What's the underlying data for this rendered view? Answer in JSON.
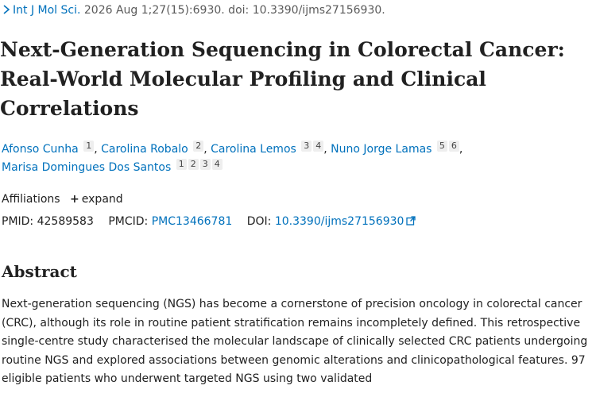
{
  "citation": {
    "journal": "Int J Mol Sci.",
    "details": "2026 Aug 1;27(15):6930. doi: 10.3390/ijms27156930."
  },
  "title": "Next-Generation Sequencing in Colorectal Cancer: Real-World Molecular Profiling and Clinical Correlations",
  "authors": [
    {
      "name": "Afonso Cunha",
      "affils": [
        "1"
      ]
    },
    {
      "name": "Carolina Robalo",
      "affils": [
        "2"
      ]
    },
    {
      "name": "Carolina Lemos",
      "affils": [
        "3",
        "4"
      ]
    },
    {
      "name": "Nuno Jorge Lamas",
      "affils": [
        "5",
        "6"
      ]
    },
    {
      "name": "Marisa Domingues Dos Santos",
      "affils": [
        "1",
        "2",
        "3",
        "4"
      ]
    }
  ],
  "affiliations": {
    "label": "Affiliations",
    "expand_label": "expand"
  },
  "identifiers": {
    "pmid_label": "PMID:",
    "pmid": "42589583",
    "pmcid_label": "PMCID:",
    "pmcid": "PMC13466781",
    "doi_label": "DOI:",
    "doi": "10.3390/ijms27156930"
  },
  "abstract": {
    "heading": "Abstract",
    "text": "Next-generation sequencing (NGS) has become a cornerstone of precision oncology in colorectal cancer (CRC), although its role in routine patient stratification remains incompletely defined. This retrospective single-centre study characterised the molecular landscape of clinically selected CRC patients undergoing routine NGS and explored associations between genomic alterations and clinicopathological features. 97 eligible patients who underwent targeted NGS using two validated"
  },
  "colors": {
    "link": "#0071bc",
    "text": "#212121",
    "muted": "#5a5a5a"
  },
  "icons": [
    "chevron-right-icon",
    "plus-icon",
    "external-link-icon"
  ]
}
